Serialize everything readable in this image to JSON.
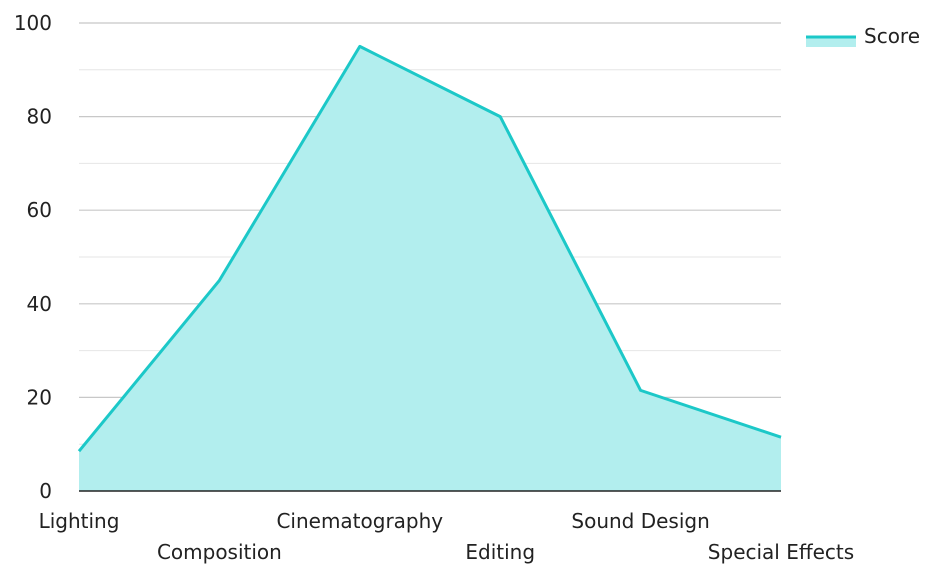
{
  "chart_data": {
    "type": "area",
    "categories": [
      "Lighting",
      "Composition",
      "Cinematography",
      "Editing",
      "Sound Design",
      "Special Effects"
    ],
    "series": [
      {
        "name": "Score",
        "values": [
          8.5,
          45,
          95,
          80,
          21.5,
          11.5
        ]
      }
    ],
    "ylim": [
      0,
      100
    ],
    "yticks": [
      0,
      20,
      40,
      60,
      80,
      100
    ],
    "grid": true,
    "legend": "top-right",
    "colors": {
      "line": "#1cc8c8",
      "fill": "#b2eeee",
      "legend_fill": "#b2eeee",
      "grid_major": "#c8c8c8",
      "grid_minor": "#e6e6e6",
      "axis": "#222222"
    }
  }
}
